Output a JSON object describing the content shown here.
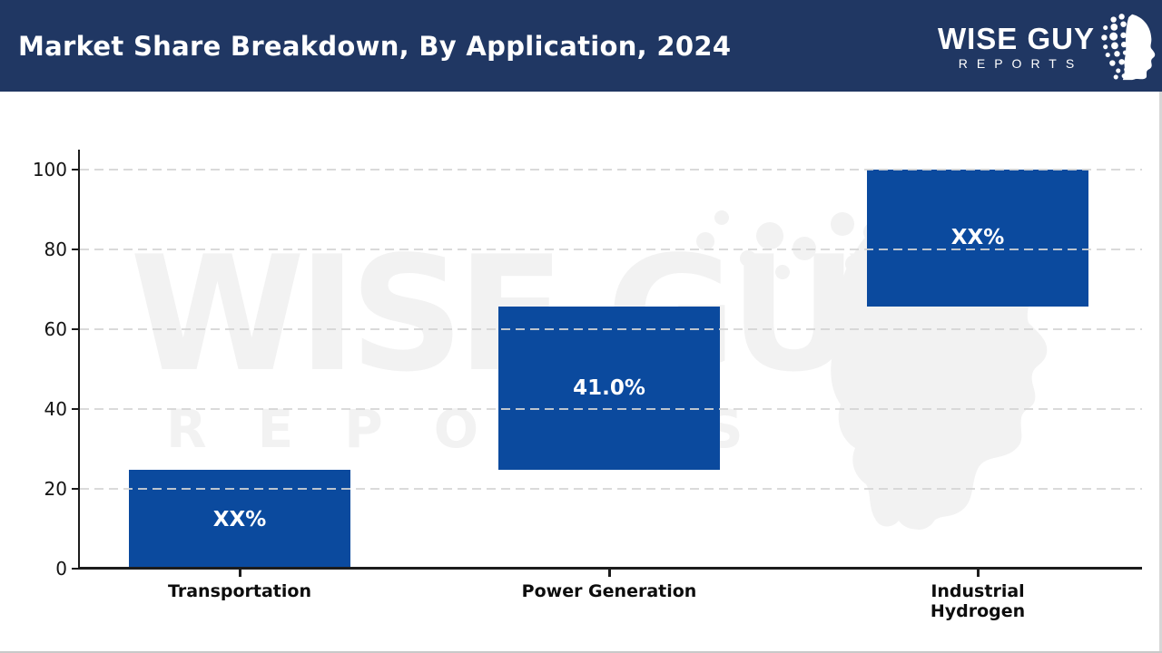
{
  "header": {
    "title": "Market Share Breakdown, By Application, 2024",
    "background_color": "#203763",
    "logo": {
      "wordmark": "WISE GUY",
      "sub": "REPORTS",
      "icon": "dotted-face-profile"
    }
  },
  "watermark": {
    "line1": "WISE GUY",
    "line2": "REPORTS",
    "icon": "dotted-face-profile",
    "color": "#f2f2f2"
  },
  "chart_data": {
    "type": "bar",
    "subtype": "floating stacked breakdown (waterfall-style, segments sum to 100%)",
    "title": "Market Share Breakdown, By Application, 2024",
    "categories": [
      "Transportation",
      "Power Generation",
      "Industrial Hydrogen"
    ],
    "segments": [
      {
        "category": "Transportation",
        "tick_label_lines": [
          "Transportation"
        ],
        "start": 0,
        "end": 24.7,
        "value_label": "XX%"
      },
      {
        "category": "Power Generation",
        "tick_label_lines": [
          "Power Generation"
        ],
        "start": 24.7,
        "end": 65.7,
        "value": 41.0,
        "value_label": "41.0%"
      },
      {
        "category": "Industrial Hydrogen",
        "tick_label_lines": [
          "Industrial",
          "Hydrogen"
        ],
        "start": 65.7,
        "end": 100,
        "value_label": "XX%"
      }
    ],
    "xlabel": "",
    "ylabel": "",
    "ylim": [
      0,
      100
    ],
    "yticks": [
      0,
      20,
      40,
      60,
      80,
      100
    ],
    "grid": "horizontal dashed, drawn over bars",
    "legend": "none",
    "bar_color": "#0b4a9e",
    "bar_label_color": "#ffffff",
    "axis_color": "#1c1c1c",
    "gridline_color": "#d5d5d5"
  }
}
